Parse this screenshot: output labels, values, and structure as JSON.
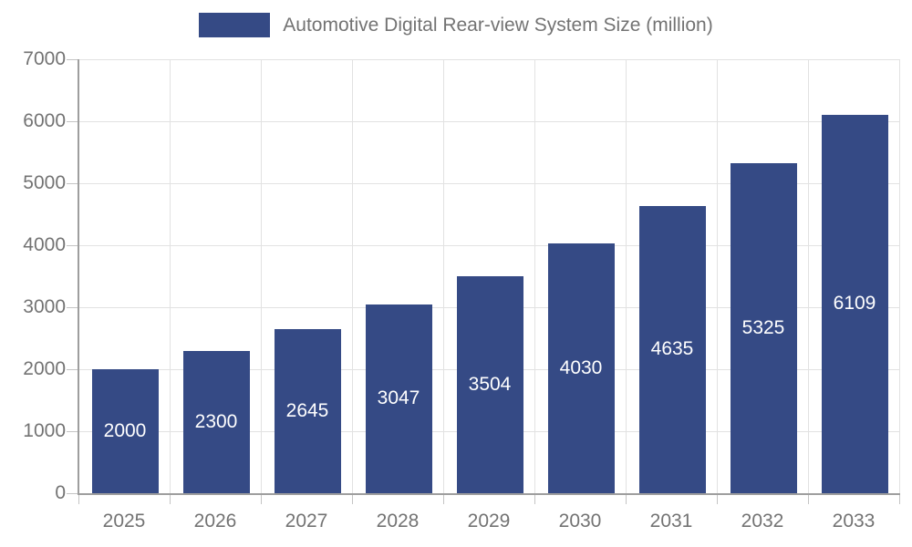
{
  "chart_data": {
    "type": "bar",
    "title": "Automotive Digital Rear-view System Size (million)",
    "categories": [
      "2025",
      "2026",
      "2027",
      "2028",
      "2029",
      "2030",
      "2031",
      "2032",
      "2033"
    ],
    "values": [
      2000,
      2300,
      2645,
      3047,
      3504,
      4030,
      4635,
      5325,
      6109
    ],
    "xlabel": "",
    "ylabel": "",
    "ylim": [
      0,
      7000
    ],
    "yticks": [
      0,
      1000,
      2000,
      3000,
      4000,
      5000,
      6000,
      7000
    ],
    "grid": true,
    "legend_position": "top",
    "bar_labels_visible": true,
    "colors": {
      "bar": "#354A85",
      "bar_label_text": "#ffffff",
      "axis_line": "#9e9e9e",
      "grid_line": "#e2e2e2",
      "tick_mark": "#c4c4c4",
      "axis_text": "#737373",
      "legend_text": "#737373",
      "background": "#ffffff"
    }
  }
}
